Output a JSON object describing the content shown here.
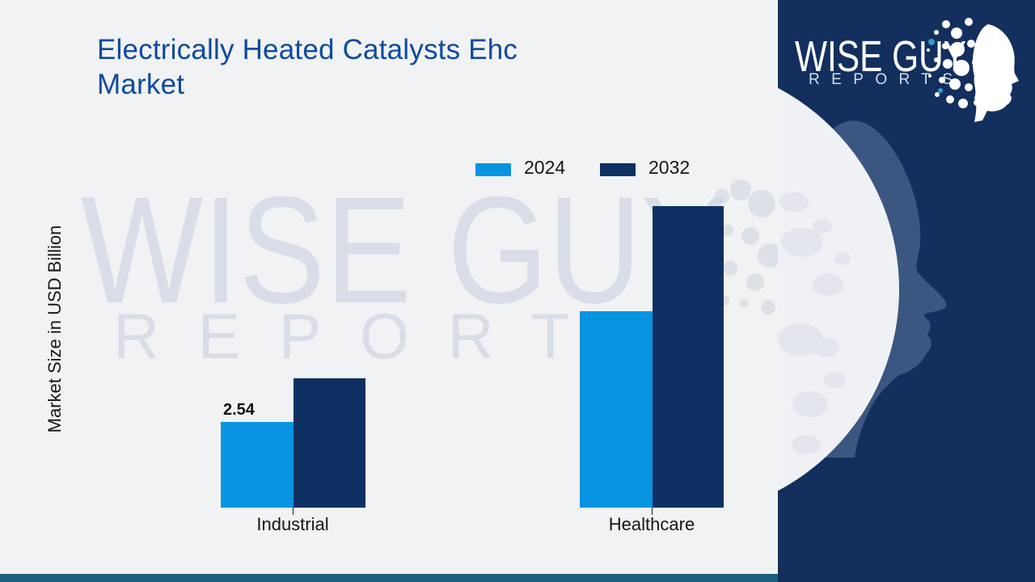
{
  "colors": {
    "bg": "#f1f2f3",
    "panel": "#132f5e",
    "face": "#3b5781",
    "circle": "#f0f1f4",
    "blob": "#e0e4eb",
    "footer": "#1a5f7e",
    "title": "#0d4a9f",
    "text": "#161616",
    "watermark": "#d8dde7",
    "logo_sub": "#cfe0ee",
    "dot_accent": "#2e9fc6"
  },
  "title": {
    "line1": "Electrically Heated Catalysts Ehc",
    "line2": "Market"
  },
  "brand": {
    "name": "WISE GUY",
    "sub": "REPORTS"
  },
  "watermark": {
    "name": "WISE GUY",
    "sub": "REPORTS"
  },
  "chart_data": {
    "type": "bar",
    "title": "Electrically Heated Catalysts Ehc Market",
    "ylabel": "Market Size in USD Billion",
    "unit": "USD Billion",
    "categories": [
      "Industrial",
      "Healthcare"
    ],
    "series": [
      {
        "name": "2024",
        "color": "#0894e0",
        "values": [
          2.54,
          5.82
        ]
      },
      {
        "name": "2032",
        "color": "#0e3063",
        "values": [
          3.83,
          8.94
        ]
      }
    ],
    "value_label": {
      "series": "2024",
      "category": "Industrial",
      "text": "2.54"
    },
    "ylim": [
      0,
      9
    ],
    "grid": false,
    "legend_position": "top-right"
  }
}
